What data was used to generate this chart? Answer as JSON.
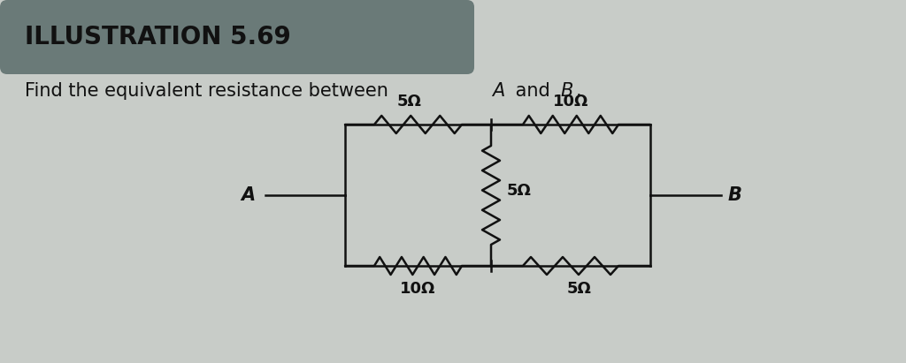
{
  "title": "ILLUSTRATION 5.69",
  "subtitle": "Find the equivalent resistance between $A$ and $B$.",
  "bg_color": "#c8ccc8",
  "title_bg_color": "#6a7a78",
  "title_text_color": "#111111",
  "subtitle_color": "#111111",
  "circuit_color": "#111111",
  "resistors": {
    "top_left": {
      "label": "5Ω"
    },
    "top_right": {
      "label": "10Ω"
    },
    "bottom_left": {
      "label": "10Ω"
    },
    "bottom_right": {
      "label": "5Ω"
    },
    "middle": {
      "label": "5Ω"
    }
  },
  "node_A_label": "A",
  "node_B_label": "B",
  "xa": 3.0,
  "xL": 3.9,
  "xM": 5.55,
  "xR": 7.35,
  "xb": 8.15,
  "ytop": 2.7,
  "ybot": 1.1,
  "ymid": 1.9
}
